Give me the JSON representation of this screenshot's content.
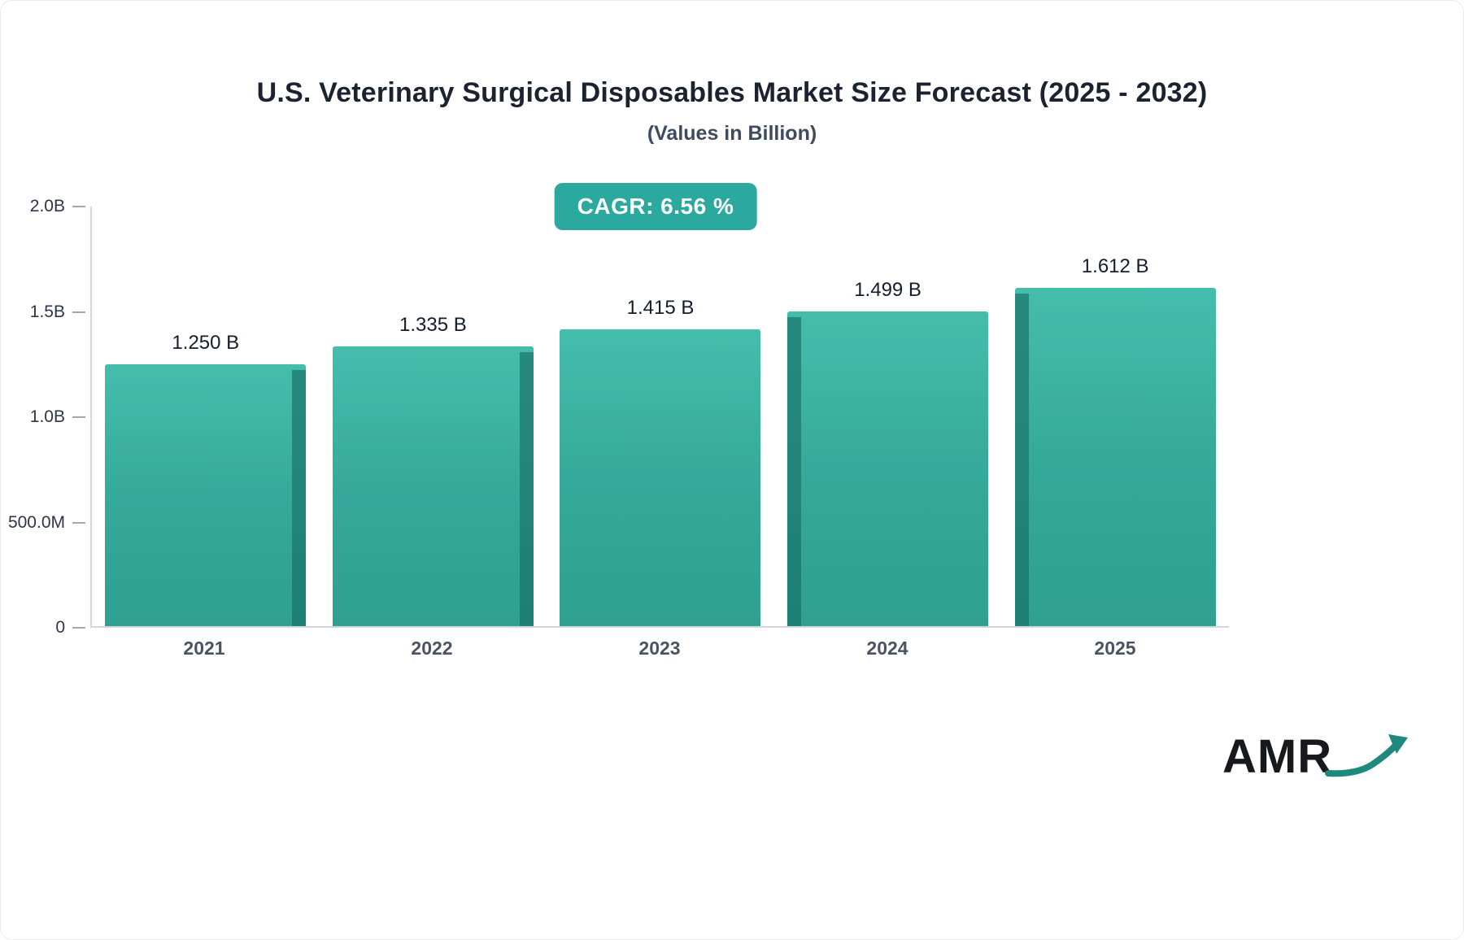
{
  "title": "U.S. Veterinary Surgical Disposables Market Size Forecast (2025 - 2032)",
  "subtitle": "(Values in Billion)",
  "cagr_badge": "CAGR: 6.56 %",
  "chart_data": {
    "type": "bar",
    "categories": [
      "2021",
      "2022",
      "2023",
      "2024",
      "2025"
    ],
    "values": [
      1.25,
      1.335,
      1.415,
      1.499,
      1.612
    ],
    "value_labels": [
      "1.250 B",
      "1.335 B",
      "1.415 B",
      "1.499 B",
      "1.612 B"
    ],
    "unit": "Billion USD",
    "ylim": [
      0,
      2.0
    ],
    "yticks": [
      {
        "value": 2.0,
        "label": "2.0B"
      },
      {
        "value": 1.5,
        "label": "1.5B"
      },
      {
        "value": 1.0,
        "label": "1.0B"
      },
      {
        "value": 0.5,
        "label": "500.0M"
      },
      {
        "value": 0.0,
        "label": "0"
      }
    ],
    "grid": false,
    "legend": "none",
    "bar_color_top": "#45BDAD",
    "bar_color_bottom": "#2FA092",
    "bar_side_color": "#1E7F74"
  },
  "colors": {
    "accent_teal": "#2BA99E",
    "title_text": "#1C2330",
    "axis_text": "#495362",
    "logo_arrow": "#1E8A7E"
  },
  "logo": {
    "text": "AMR"
  }
}
